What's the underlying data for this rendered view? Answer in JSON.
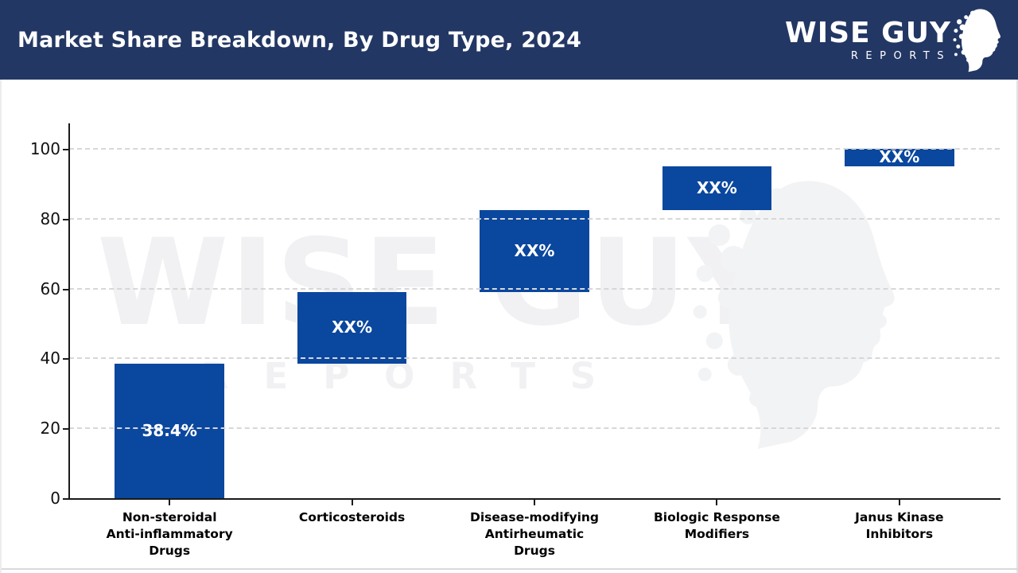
{
  "header": {
    "title": "Market Share Breakdown, By Drug Type, 2024",
    "bg_color": "#233764",
    "logo": {
      "line1": "WISE GUY",
      "line2": "REPORTS"
    }
  },
  "watermark": {
    "line1": "WISE GUY",
    "line2": "REPORTS"
  },
  "chart_data": {
    "type": "bar",
    "subtype": "waterfall",
    "title": "Market Share Breakdown, By Drug Type, 2024",
    "xlabel": "",
    "ylabel": "",
    "ylim": [
      0,
      107
    ],
    "yticks": [
      0,
      20,
      40,
      60,
      80,
      100
    ],
    "grid": "horizontal dashed",
    "legend": "none",
    "bar_color": "#0A479E",
    "bar_label_color": "#ffffff",
    "categories": [
      "Non-steroidal Anti-inflammatory Drugs",
      "Corticosteroids",
      "Disease-modifying Antirheumatic Drugs",
      "Biologic Response Modifiers",
      "Janus Kinase Inhibitors"
    ],
    "bars": [
      {
        "category": "Non-steroidal Anti-inflammatory Drugs",
        "lines": [
          "Non-steroidal",
          "Anti-inflammatory",
          "Drugs"
        ],
        "label": "38.4%",
        "start": 0,
        "end": 38.4,
        "value": 38.4
      },
      {
        "category": "Corticosteroids",
        "lines": [
          "Corticosteroids"
        ],
        "label": "XX%",
        "start": 38.4,
        "end": 59.0,
        "value": 20.6
      },
      {
        "category": "Disease-modifying Antirheumatic Drugs",
        "lines": [
          "Disease-modifying",
          "Antirheumatic",
          "Drugs"
        ],
        "label": "XX%",
        "start": 59.0,
        "end": 82.4,
        "value": 23.4
      },
      {
        "category": "Biologic Response Modifiers",
        "lines": [
          "Biologic Response",
          "Modifiers"
        ],
        "label": "XX%",
        "start": 82.4,
        "end": 95.0,
        "value": 12.6
      },
      {
        "category": "Janus Kinase Inhibitors",
        "lines": [
          "Janus Kinase",
          "Inhibitors"
        ],
        "label": "XX%",
        "start": 95.0,
        "end": 100.0,
        "value": 5.0
      }
    ]
  }
}
